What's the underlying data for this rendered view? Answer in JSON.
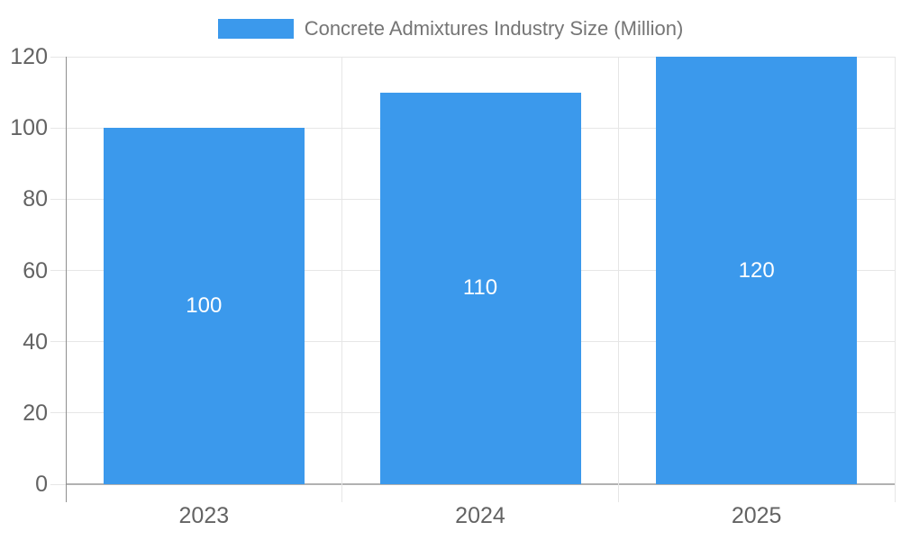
{
  "chart_data": {
    "type": "bar",
    "title": "Concrete Admixtures Industry Size (Million)",
    "categories": [
      "2023",
      "2024",
      "2025"
    ],
    "series": [
      {
        "name": "Concrete Admixtures Industry Size (Million)",
        "values": [
          100,
          110,
          120
        ],
        "data_labels": [
          "100",
          "110",
          "120"
        ]
      }
    ],
    "xlabel": "",
    "ylabel": "",
    "ylim": [
      0,
      120
    ],
    "yticks": [
      0,
      20,
      40,
      60,
      80,
      100,
      120
    ],
    "grid": true,
    "legend_position": "top",
    "colors": {
      "bar": "#3b99ec",
      "gridline": "#e6e6e6",
      "baseline": "#b1b1b1",
      "axis_line": "#8f8f8f",
      "tick_label": "#636363",
      "legend_text": "#757575",
      "data_label": "#ffffff",
      "background": "#ffffff"
    }
  }
}
